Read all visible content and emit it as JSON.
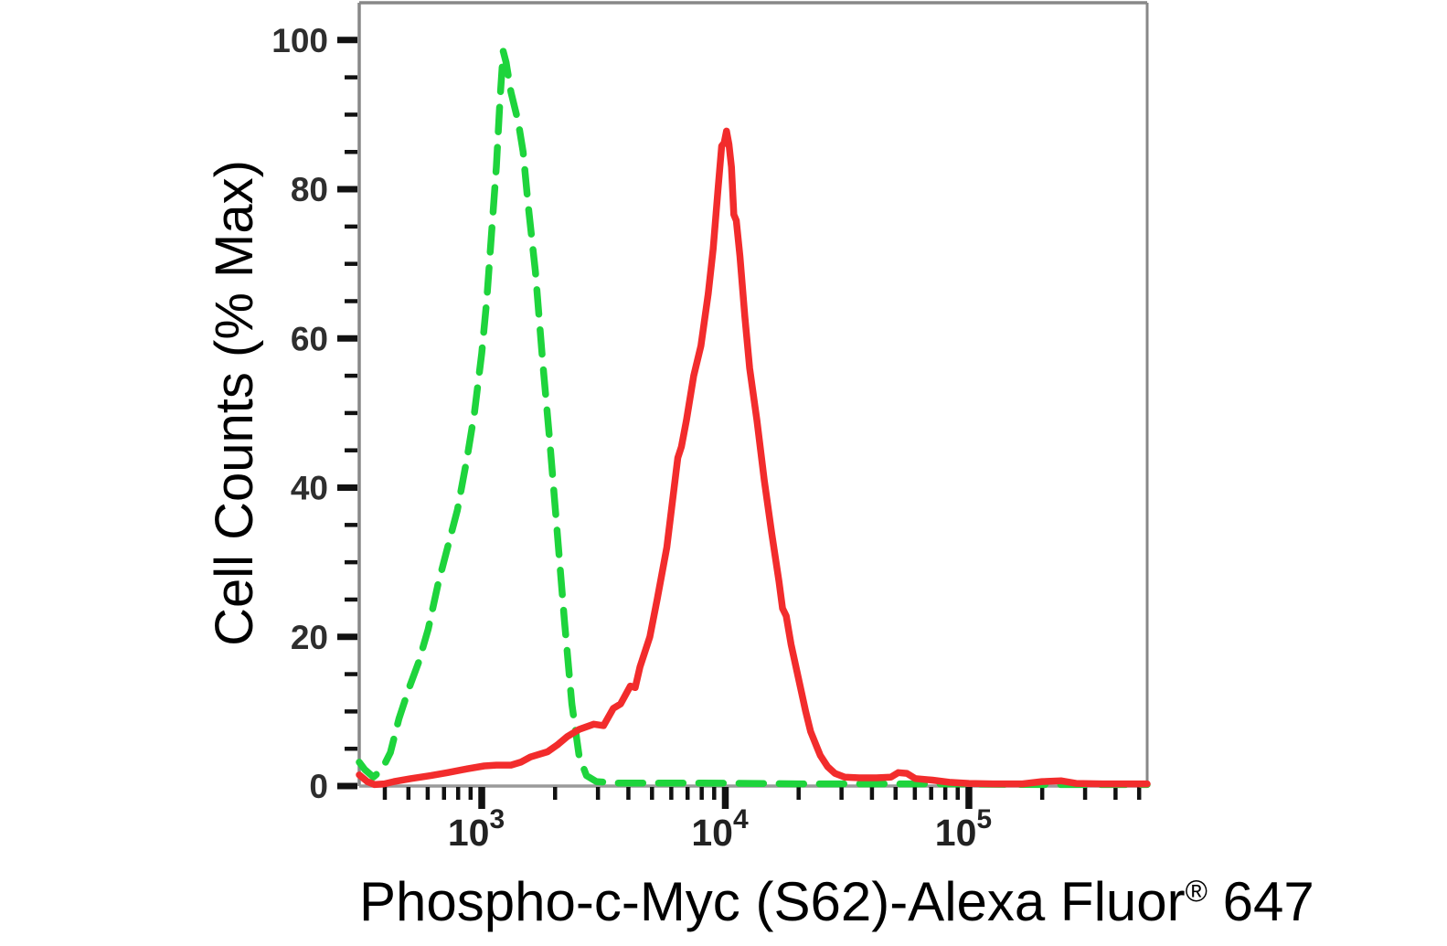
{
  "figure": {
    "ylabel": "Cell Counts (% Max)",
    "xlabel_main": "Phospho-c-Myc (S62)-Alexa Fluor",
    "xlabel_reg": "®",
    "xlabel_tail": " 647"
  },
  "chart_data": {
    "type": "line",
    "title": "",
    "xlabel": "Phospho-c-Myc (S62)-Alexa Fluor® 647",
    "ylabel": "Cell Counts (% Max)",
    "x_scale": "log10",
    "x_range_log": [
      2.497,
      5.732
    ],
    "ylim": [
      0,
      105
    ],
    "grid": false,
    "legend": "none",
    "y_ticks_major": [
      0,
      20,
      40,
      60,
      80,
      100
    ],
    "y_tick_labels": [
      "0",
      "20",
      "40",
      "60",
      "80",
      "100"
    ],
    "y_minor_step": 5,
    "x_ticks_major_exponents": [
      3,
      4,
      5
    ],
    "x_tick_labels": [
      {
        "base": "10",
        "exp": "3"
      },
      {
        "base": "10",
        "exp": "4"
      },
      {
        "base": "10",
        "exp": "5"
      }
    ],
    "colors": {
      "green_series": "#1ed43c",
      "red_series": "#f22c2c",
      "spine": "#888888",
      "bottom_axis": "#9a9a9a",
      "tick": "#111111",
      "tick_label": "#2e2e2e"
    },
    "series": [
      {
        "name": "green-dashed-histogram",
        "style": "dashed",
        "color": "#1ed43c",
        "peak": {
          "log10_x": 3.09,
          "percent_max": 98
        },
        "points_log10x_percent": [
          [
            2.497,
            3.2
          ],
          [
            2.52,
            2.2
          ],
          [
            2.555,
            1.2
          ],
          [
            2.59,
            2.2
          ],
          [
            2.625,
            4.5
          ],
          [
            2.66,
            9
          ],
          [
            2.7,
            13
          ],
          [
            2.74,
            16.5
          ],
          [
            2.78,
            21
          ],
          [
            2.82,
            27
          ],
          [
            2.86,
            32
          ],
          [
            2.9,
            37
          ],
          [
            2.94,
            44
          ],
          [
            2.97,
            50
          ],
          [
            3.0,
            58
          ],
          [
            3.02,
            65
          ],
          [
            3.04,
            74
          ],
          [
            3.06,
            83
          ],
          [
            3.075,
            92
          ],
          [
            3.088,
            98.5
          ],
          [
            3.1,
            97
          ],
          [
            3.12,
            93
          ],
          [
            3.15,
            89
          ],
          [
            3.17,
            85
          ],
          [
            3.19,
            78
          ],
          [
            3.22,
            69
          ],
          [
            3.25,
            57
          ],
          [
            3.28,
            46
          ],
          [
            3.31,
            34
          ],
          [
            3.34,
            22
          ],
          [
            3.37,
            11
          ],
          [
            3.4,
            4
          ],
          [
            3.43,
            1.4
          ],
          [
            3.47,
            0.6
          ],
          [
            3.55,
            0.4
          ],
          [
            3.7,
            0.4
          ],
          [
            3.9,
            0.4
          ],
          [
            4.1,
            0.35
          ],
          [
            4.3,
            0.3
          ],
          [
            4.5,
            0.3
          ],
          [
            4.7,
            0.3
          ],
          [
            4.9,
            0.3
          ],
          [
            5.1,
            0.25
          ],
          [
            5.3,
            0.2
          ],
          [
            5.5,
            0.2
          ],
          [
            5.732,
            0.2
          ]
        ]
      },
      {
        "name": "red-solid-histogram",
        "style": "solid",
        "color": "#f22c2c",
        "peak": {
          "log10_x": 4.0,
          "percent_max": 88
        },
        "points_log10x_percent": [
          [
            2.497,
            1.5
          ],
          [
            2.53,
            0.6
          ],
          [
            2.56,
            0.2
          ],
          [
            2.6,
            0.3
          ],
          [
            2.64,
            0.6
          ],
          [
            2.71,
            1.0
          ],
          [
            2.79,
            1.4
          ],
          [
            2.86,
            1.8
          ],
          [
            2.94,
            2.3
          ],
          [
            3.01,
            2.7
          ],
          [
            3.06,
            2.8
          ],
          [
            3.12,
            2.8
          ],
          [
            3.16,
            3.2
          ],
          [
            3.2,
            3.9
          ],
          [
            3.27,
            4.6
          ],
          [
            3.31,
            5.5
          ],
          [
            3.35,
            6.6
          ],
          [
            3.4,
            7.6
          ],
          [
            3.46,
            8.3
          ],
          [
            3.5,
            8.1
          ],
          [
            3.54,
            10.4
          ],
          [
            3.57,
            11.0
          ],
          [
            3.61,
            13.4
          ],
          [
            3.63,
            13.2
          ],
          [
            3.65,
            16
          ],
          [
            3.69,
            20
          ],
          [
            3.72,
            25
          ],
          [
            3.76,
            32
          ],
          [
            3.79,
            40
          ],
          [
            3.805,
            44
          ],
          [
            3.82,
            45.5
          ],
          [
            3.84,
            49
          ],
          [
            3.87,
            55
          ],
          [
            3.9,
            59
          ],
          [
            3.93,
            66
          ],
          [
            3.95,
            72
          ],
          [
            3.97,
            80
          ],
          [
            3.985,
            85.8
          ],
          [
            3.995,
            86.2
          ],
          [
            4.005,
            87.8
          ],
          [
            4.015,
            86
          ],
          [
            4.025,
            83
          ],
          [
            4.035,
            76.6
          ],
          [
            4.045,
            75.8
          ],
          [
            4.06,
            71
          ],
          [
            4.08,
            63
          ],
          [
            4.1,
            56
          ],
          [
            4.13,
            49
          ],
          [
            4.16,
            41
          ],
          [
            4.19,
            34
          ],
          [
            4.22,
            27.5
          ],
          [
            4.235,
            23.8
          ],
          [
            4.25,
            22.8
          ],
          [
            4.27,
            19
          ],
          [
            4.3,
            14.5
          ],
          [
            4.33,
            10
          ],
          [
            4.35,
            7.3
          ],
          [
            4.37,
            5.7
          ],
          [
            4.39,
            4.1
          ],
          [
            4.42,
            2.6
          ],
          [
            4.45,
            1.7
          ],
          [
            4.49,
            1.2
          ],
          [
            4.55,
            1.1
          ],
          [
            4.62,
            1.1
          ],
          [
            4.68,
            1.2
          ],
          [
            4.71,
            1.8
          ],
          [
            4.745,
            1.7
          ],
          [
            4.78,
            1.0
          ],
          [
            4.85,
            0.8
          ],
          [
            4.92,
            0.5
          ],
          [
            5.0,
            0.35
          ],
          [
            5.1,
            0.3
          ],
          [
            5.22,
            0.3
          ],
          [
            5.3,
            0.6
          ],
          [
            5.38,
            0.7
          ],
          [
            5.44,
            0.35
          ],
          [
            5.55,
            0.3
          ],
          [
            5.65,
            0.3
          ],
          [
            5.732,
            0.3
          ]
        ]
      }
    ]
  }
}
